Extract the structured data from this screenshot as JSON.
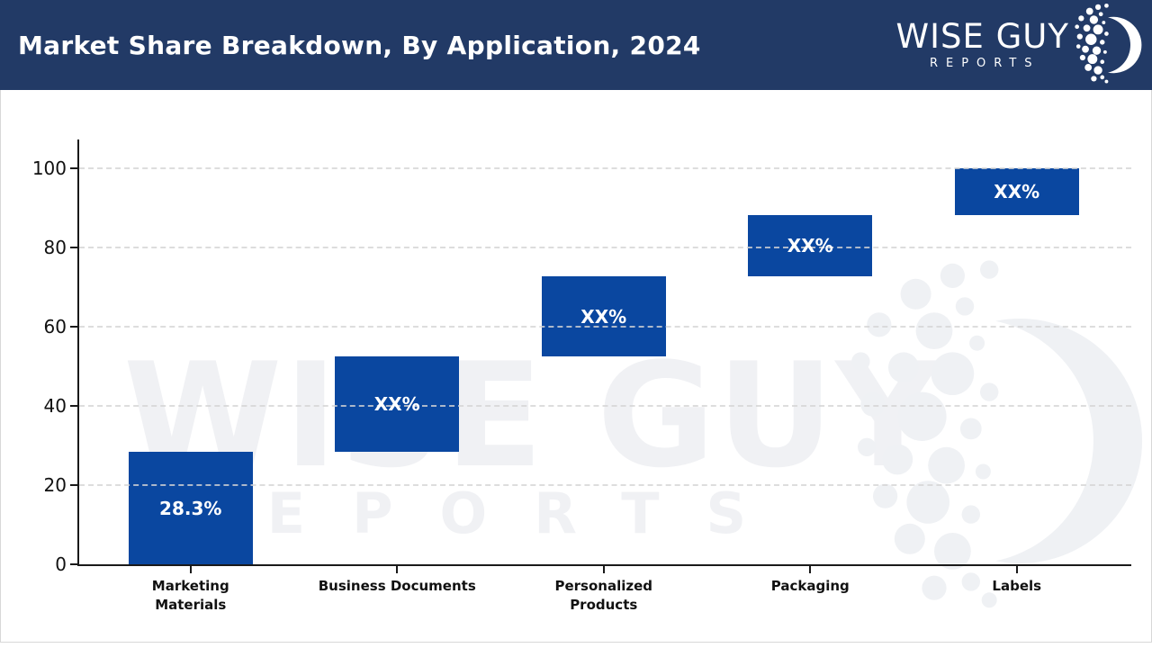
{
  "header": {
    "title": "Market Share Breakdown, By Application, 2024",
    "logo": {
      "wordmark": "WISE GUY",
      "subtext": "REPORTS"
    }
  },
  "watermark": {
    "line1": "WISE GUY",
    "line2": "REPORTS"
  },
  "chart_data": {
    "type": "bar",
    "subtype": "waterfall",
    "title": "Market Share Breakdown, By Application, 2024",
    "categories": [
      "Marketing Materials",
      "Business Documents",
      "Personalized Products",
      "Packaging",
      "Labels"
    ],
    "category_lines": [
      [
        "Marketing",
        "Materials"
      ],
      [
        "Business Documents"
      ],
      [
        "Personalized",
        "Products"
      ],
      [
        "Packaging"
      ],
      [
        "Labels"
      ]
    ],
    "segments": [
      {
        "start": 0,
        "end": 28.3
      },
      {
        "start": 28.3,
        "end": 52.5
      },
      {
        "start": 52.5,
        "end": 72.7
      },
      {
        "start": 72.7,
        "end": 88.2
      },
      {
        "start": 88.2,
        "end": 100
      }
    ],
    "bar_labels": [
      "28.3%",
      "XX%",
      "XX%",
      "XX%",
      "XX%"
    ],
    "ylim": [
      0,
      100
    ],
    "yticks": [
      0,
      20,
      40,
      60,
      80,
      100
    ],
    "grid": "horizontal-dashed-drawn-above-bars",
    "legend": "none",
    "colors": {
      "bar": "#0a47a0",
      "bar_label": "#ffffff",
      "axis": "#1a1a1a",
      "grid": "#d5d5d5",
      "header_bg": "#223a66",
      "watermark": "#f0f1f4"
    }
  }
}
